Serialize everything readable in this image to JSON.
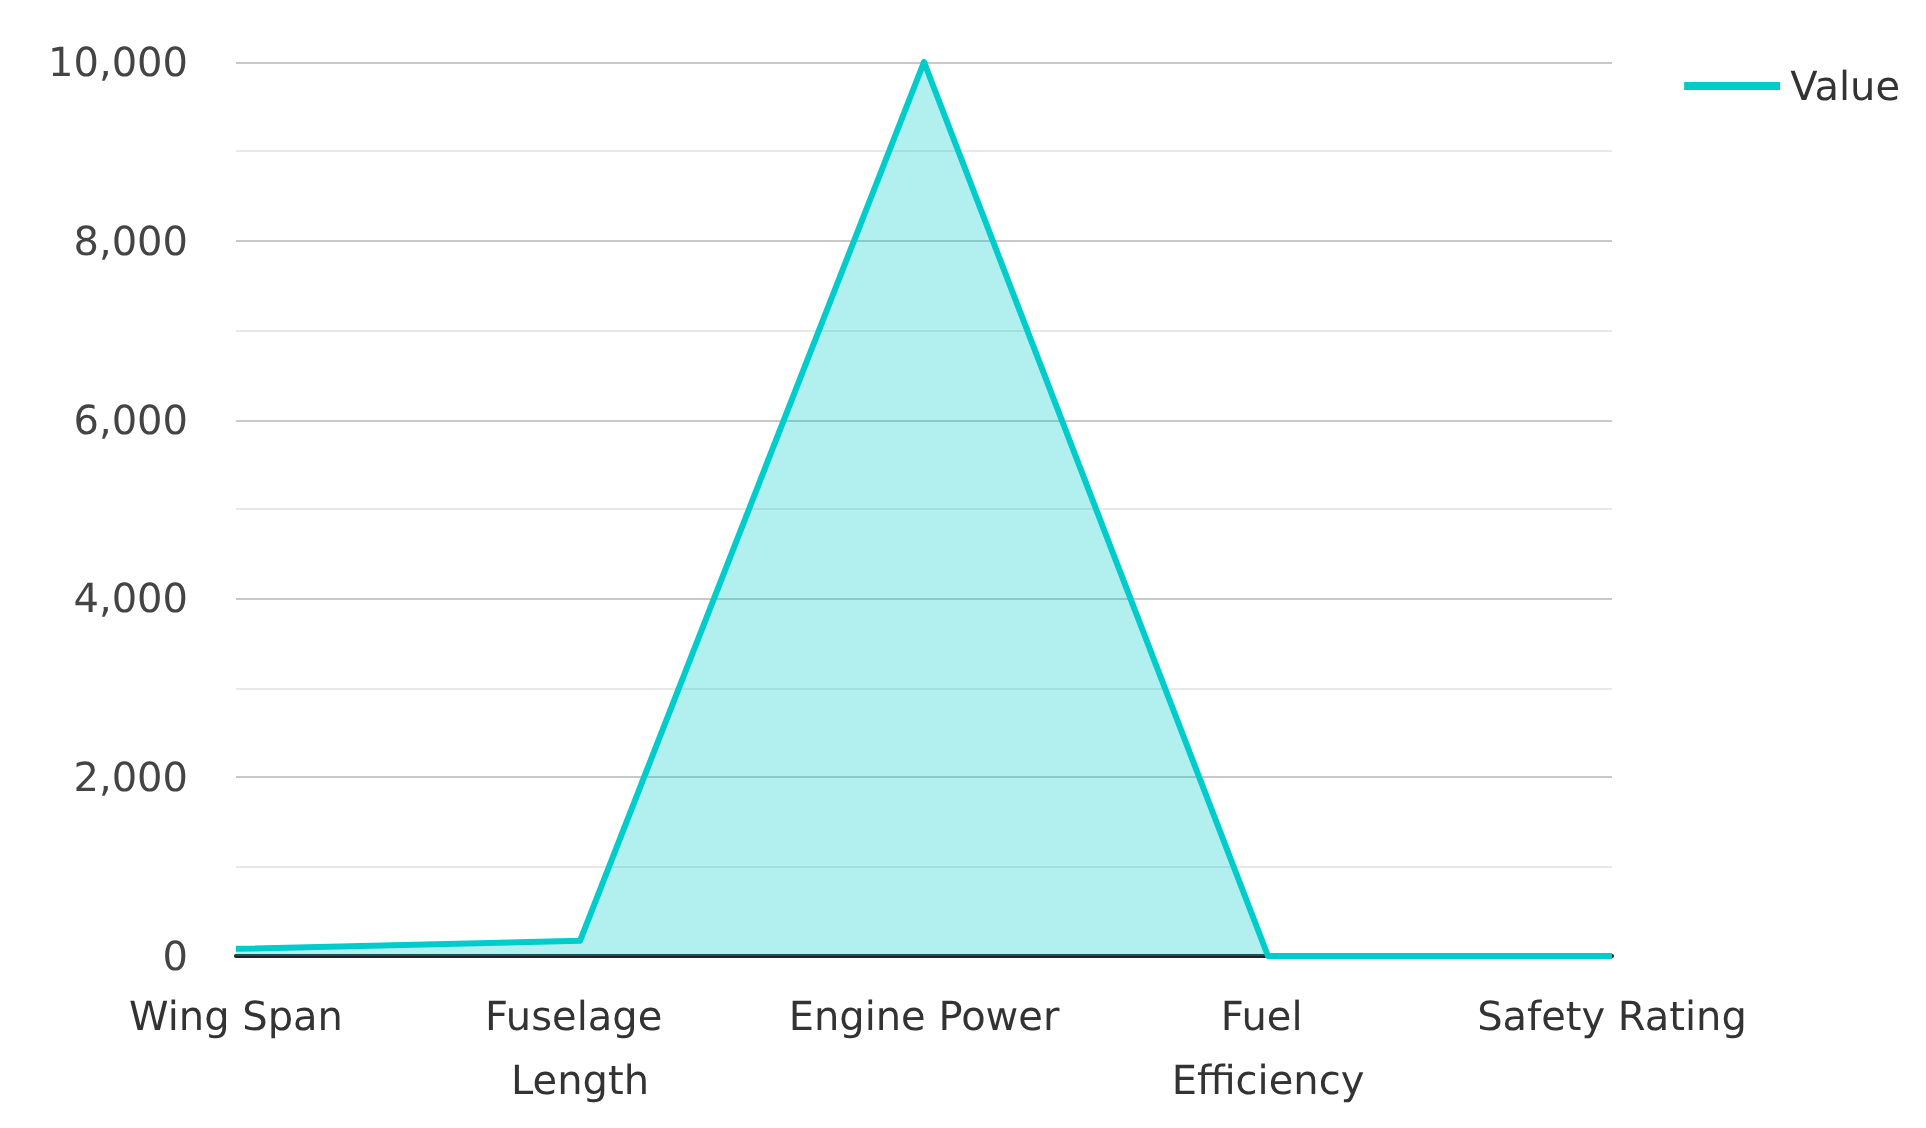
{
  "chart_data": {
    "type": "area",
    "categories": [
      "Wing Span",
      "Fuselage Length",
      "Engine Power",
      "Fuel Efficiency",
      "Safety Rating"
    ],
    "series": [
      {
        "name": "Value",
        "color": "#00cccc",
        "values": [
          80,
          170,
          10000,
          0,
          0
        ]
      }
    ],
    "ylim": [
      0,
      10000
    ],
    "yticks": [
      0,
      {
        "value": 2000,
        "label": "2,000"
      },
      {
        "value": 4000,
        "label": "4,000"
      },
      {
        "value": 6000,
        "label": "6,000"
      },
      {
        "value": 8000,
        "label": "8,000"
      },
      {
        "value": 10000,
        "label": "10,000"
      }
    ],
    "grid": "y",
    "legend": "top right",
    "marker": "none"
  }
}
